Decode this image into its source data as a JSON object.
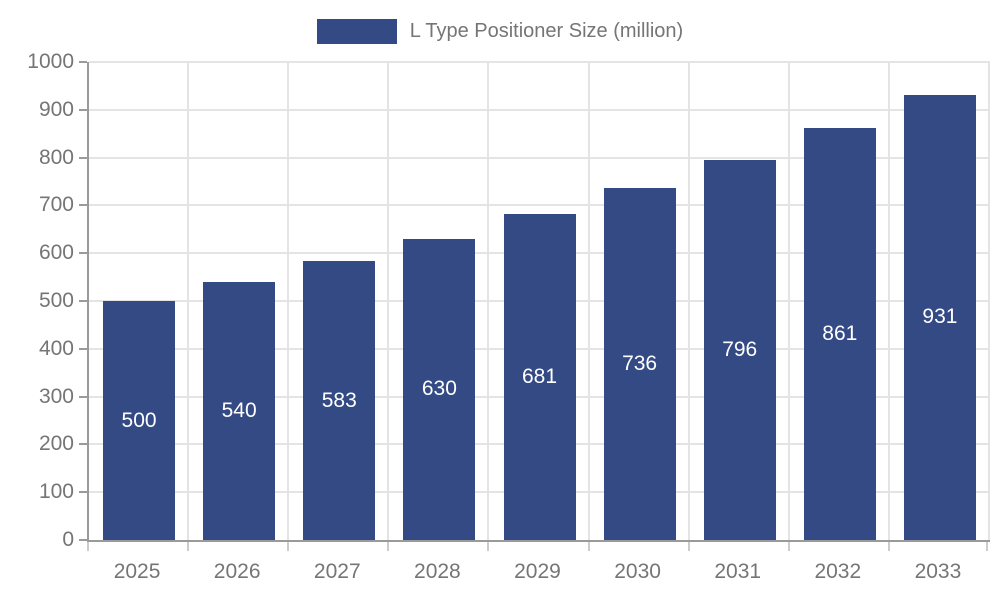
{
  "chart_data": {
    "type": "bar",
    "legend": "L Type Positioner Size (million)",
    "categories": [
      "2025",
      "2026",
      "2027",
      "2028",
      "2029",
      "2030",
      "2031",
      "2032",
      "2033"
    ],
    "values": [
      500,
      540,
      583,
      630,
      681,
      736,
      796,
      861,
      931
    ],
    "title": "",
    "xlabel": "",
    "ylabel": "",
    "ylim": [
      0,
      1000
    ],
    "y_ticks": [
      0,
      100,
      200,
      300,
      400,
      500,
      600,
      700,
      800,
      900,
      1000
    ],
    "grid": true,
    "legend_position": "top-center",
    "bar_labels_inside": true,
    "colors": {
      "bar": "#344a85",
      "bar_label": "#ffffff",
      "axis_text": "#757575",
      "grid_line": "#e4e4e4",
      "axis_line": "#9a9a9a",
      "tick_line": "#cccccc",
      "background": "#ffffff"
    }
  }
}
